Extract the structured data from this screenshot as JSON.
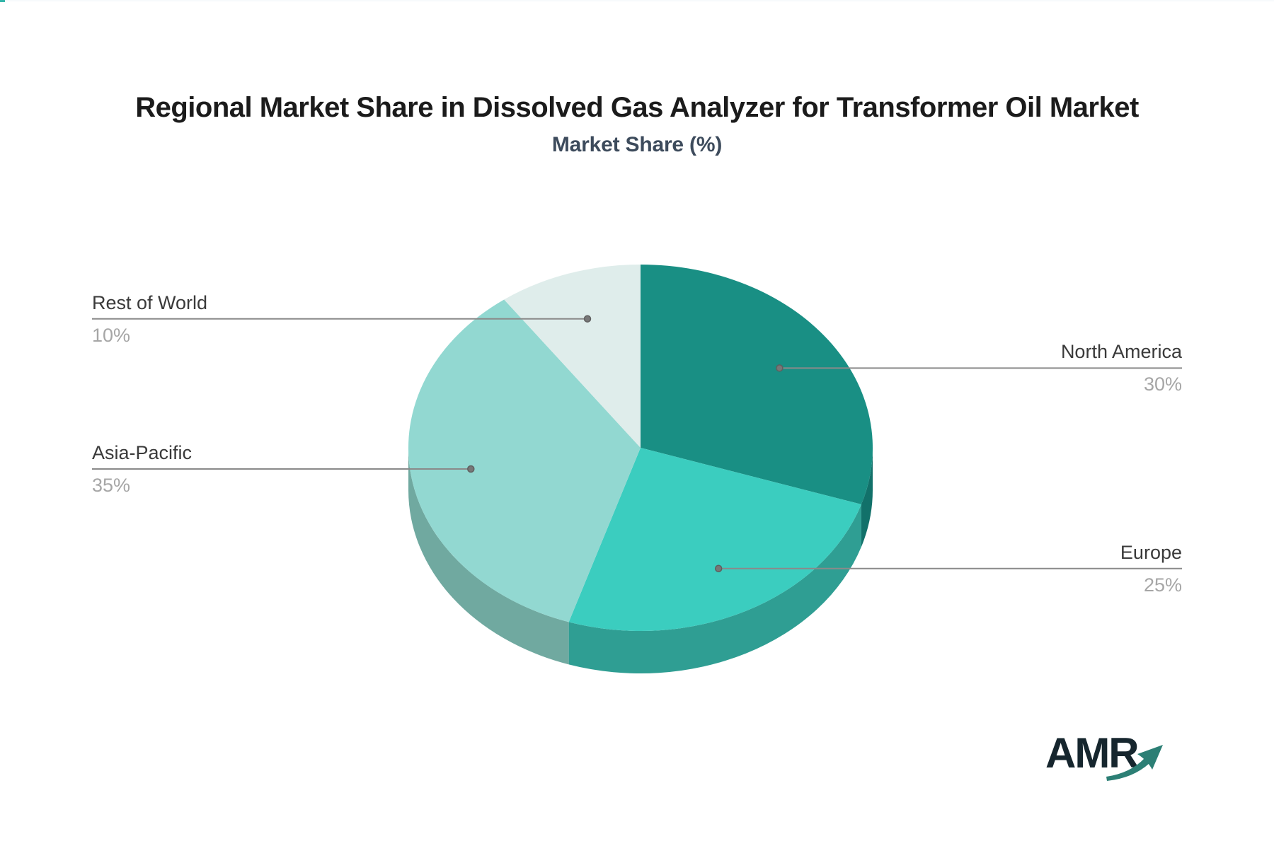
{
  "page": {
    "title": "Regional Market Share in Dissolved Gas Analyzer for Transformer Oil Market",
    "subtitle": "Market Share (%)"
  },
  "chart_data": {
    "type": "pie",
    "style": "3d-pie",
    "title": "Regional Market Share in Dissolved Gas Analyzer for Transformer Oil Market",
    "subtitle": "Market Share (%)",
    "unit": "%",
    "start_angle_deg": 0,
    "direction": "clockwise",
    "labels_style": "outside-callouts",
    "legend": "none",
    "slices": [
      {
        "label": "North America",
        "value": 30,
        "display": "30%",
        "color": "#198F84",
        "side_color": "#12716A"
      },
      {
        "label": "Europe",
        "value": 25,
        "display": "25%",
        "color": "#3BCDBF",
        "side_color": "#2F9E93"
      },
      {
        "label": "Asia-Pacific",
        "value": 35,
        "display": "35%",
        "color": "#92D8D1",
        "side_color": "#70A9A0"
      },
      {
        "label": "Rest of World",
        "value": 10,
        "display": "10%",
        "color": "#DFEDEB",
        "side_color": "#B8D0CD"
      }
    ]
  },
  "logo": {
    "text": "AMR"
  },
  "colors": {
    "background": "#FFFFFF",
    "title_text": "#1B1B1B",
    "subtitle_text": "#3D4B5C",
    "label_text": "#3A3A3A",
    "value_text": "#A6A6A6",
    "leader_line": "#8A8A8A",
    "leader_dot": "#777777",
    "leader_dot_ring": "#5F5F5F",
    "logo_text": "#16262E",
    "logo_arrow": "#2C7F75"
  }
}
